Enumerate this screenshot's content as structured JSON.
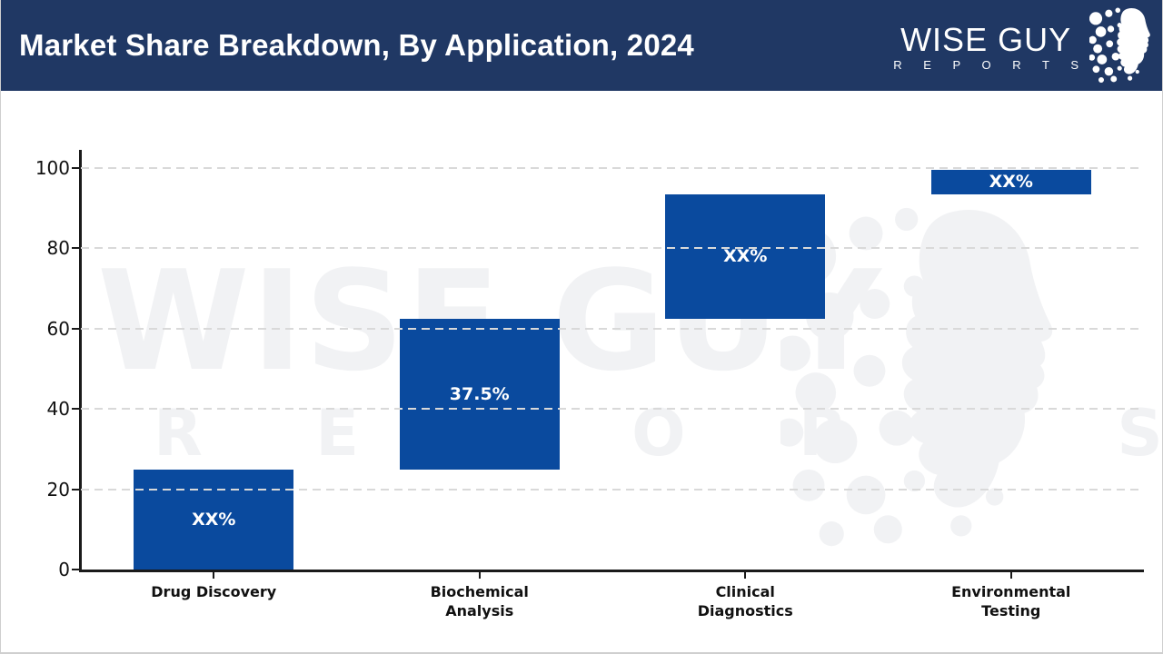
{
  "header": {
    "title": "Market Share Breakdown, By Application, 2024",
    "bg_color": "#203864",
    "logo": {
      "line1": "WISE GUY",
      "line2": "R E P O R T S"
    }
  },
  "watermark": {
    "line1": "WISE GUY",
    "line2": "R E P O R T S"
  },
  "chart_data": {
    "type": "bar",
    "variant": "waterfall",
    "title": "Market Share Breakdown, By Application, 2024",
    "categories": [
      "Drug Discovery",
      "Biochemical\nAnalysis",
      "Clinical\nDiagnostics",
      "Environmental\nTesting"
    ],
    "bars": [
      {
        "category": "Drug Discovery",
        "start": 0,
        "end": 25,
        "label": "XX%"
      },
      {
        "category": "Biochemical Analysis",
        "start": 25,
        "end": 62.5,
        "label": "37.5%"
      },
      {
        "category": "Clinical Diagnostics",
        "start": 62.5,
        "end": 93.5,
        "label": "XX%"
      },
      {
        "category": "Environmental Testing",
        "start": 93.5,
        "end": 99.5,
        "label": "XX%"
      }
    ],
    "xlabel": "",
    "ylabel": "",
    "ylim": [
      0,
      105
    ],
    "yticks": [
      0,
      20,
      40,
      60,
      80,
      100
    ],
    "grid": "horizontal-dashed",
    "legend": "none",
    "colors": {
      "bar": "#0a4a9e",
      "bar_label": "#ffffff",
      "grid": "#d9d9d9",
      "axis": "#1a1a1a",
      "tick_label": "#111111"
    }
  }
}
